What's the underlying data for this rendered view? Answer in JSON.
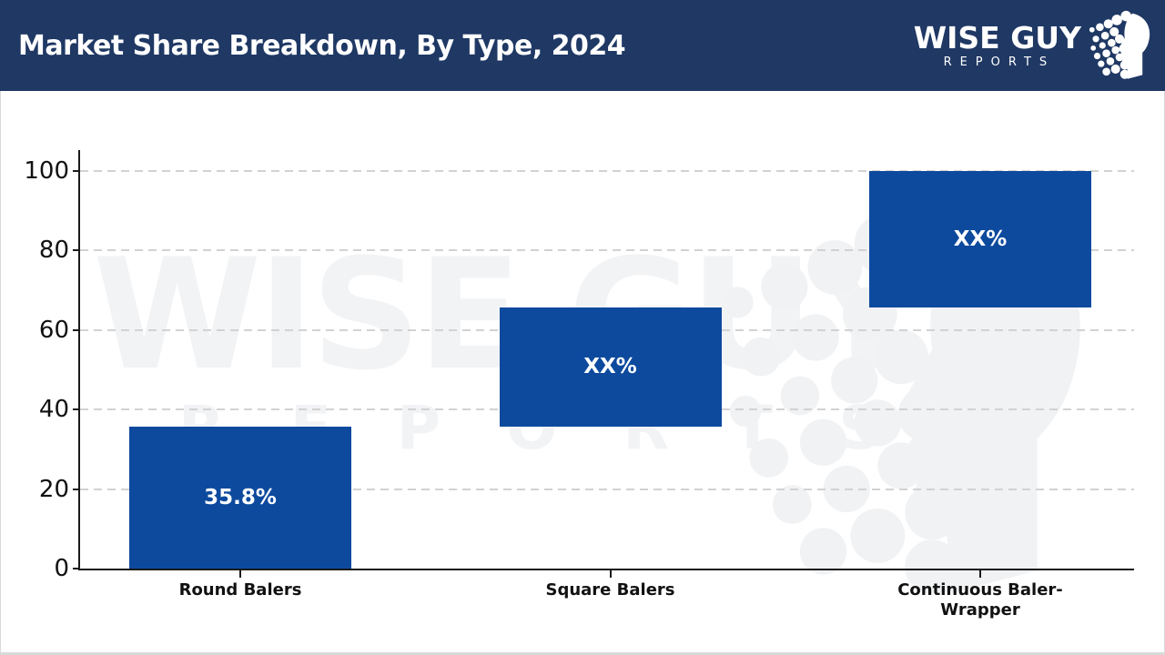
{
  "header": {
    "title": "Market Share Breakdown, By Type, 2024",
    "logo_line1": "WISE GUY",
    "logo_line2": "REPORTS"
  },
  "watermark": {
    "line1": "WISE GUY",
    "line2": "REPORTS"
  },
  "colors": {
    "header_bg": "#1F3864",
    "bar": "#0D4A9E",
    "axis": "#1A1A1A",
    "grid": "#D2D2D2",
    "watermark": "#F2F3F5",
    "bar_label": "#FFFFFF",
    "title_text": "#FFFFFF"
  },
  "chart_data": {
    "type": "bar",
    "subtype": "waterfall",
    "title": "Market Share Breakdown, By Type, 2024",
    "categories": [
      "Round Balers",
      "Square Balers",
      "Continuous Baler-\nWrapper"
    ],
    "series": [
      {
        "name": "Market Share (%)",
        "segments": [
          {
            "category": "Round Balers",
            "start": 0,
            "end": 35.8,
            "label": "35.8%"
          },
          {
            "category": "Square Balers",
            "start": 35.8,
            "end": 65.7,
            "label": "XX%"
          },
          {
            "category": "Continuous Baler-Wrapper",
            "start": 65.7,
            "end": 100,
            "label": "XX%"
          }
        ]
      }
    ],
    "xlabel": "",
    "ylabel": "",
    "ylim": [
      0,
      100
    ],
    "yticks": [
      0,
      20,
      40,
      60,
      80,
      100
    ],
    "grid": "horizontal-dashed",
    "legend": "none"
  }
}
